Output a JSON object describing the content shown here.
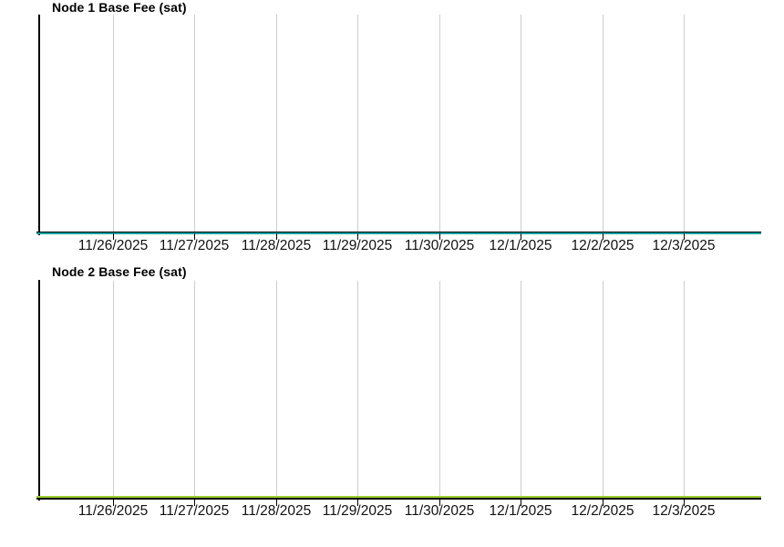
{
  "page": {
    "background_color": "#ffffff",
    "gridline_color": "#cdcdcd",
    "axis_color": "#000000",
    "label_color": "#111111"
  },
  "chart_data": [
    {
      "type": "line",
      "title": "Node 1 Base Fee (sat)",
      "x": [
        "11/26/2025",
        "11/27/2025",
        "11/28/2025",
        "11/29/2025",
        "11/30/2025",
        "12/1/2025",
        "12/2/2025",
        "12/3/2025"
      ],
      "series": [
        {
          "name": "Node 1 Base Fee (sat)",
          "values": [
            0,
            0,
            0,
            0,
            0,
            0,
            0,
            0
          ]
        }
      ],
      "xlabel": "",
      "ylabel": "",
      "x_range_approx": [
        "11/25/2025",
        "12/4/2025"
      ],
      "y_axis_tick_labels": "none visible",
      "line_color": "#16a0a0",
      "grid": "vertical gridlines only",
      "legend_position": "none"
    },
    {
      "type": "line",
      "title": "Node 2 Base Fee (sat)",
      "x": [
        "11/26/2025",
        "11/27/2025",
        "11/28/2025",
        "11/29/2025",
        "11/30/2025",
        "12/1/2025",
        "12/2/2025",
        "12/3/2025"
      ],
      "series": [
        {
          "name": "Node 2 Base Fee (sat)",
          "values": [
            0,
            0,
            0,
            0,
            0,
            0,
            0,
            0
          ]
        }
      ],
      "xlabel": "",
      "ylabel": "",
      "x_range_approx": [
        "11/25/2025",
        "12/4/2025"
      ],
      "y_axis_tick_labels": "none visible",
      "line_color": "#9acd32",
      "grid": "vertical gridlines only",
      "legend_position": "none"
    }
  ]
}
